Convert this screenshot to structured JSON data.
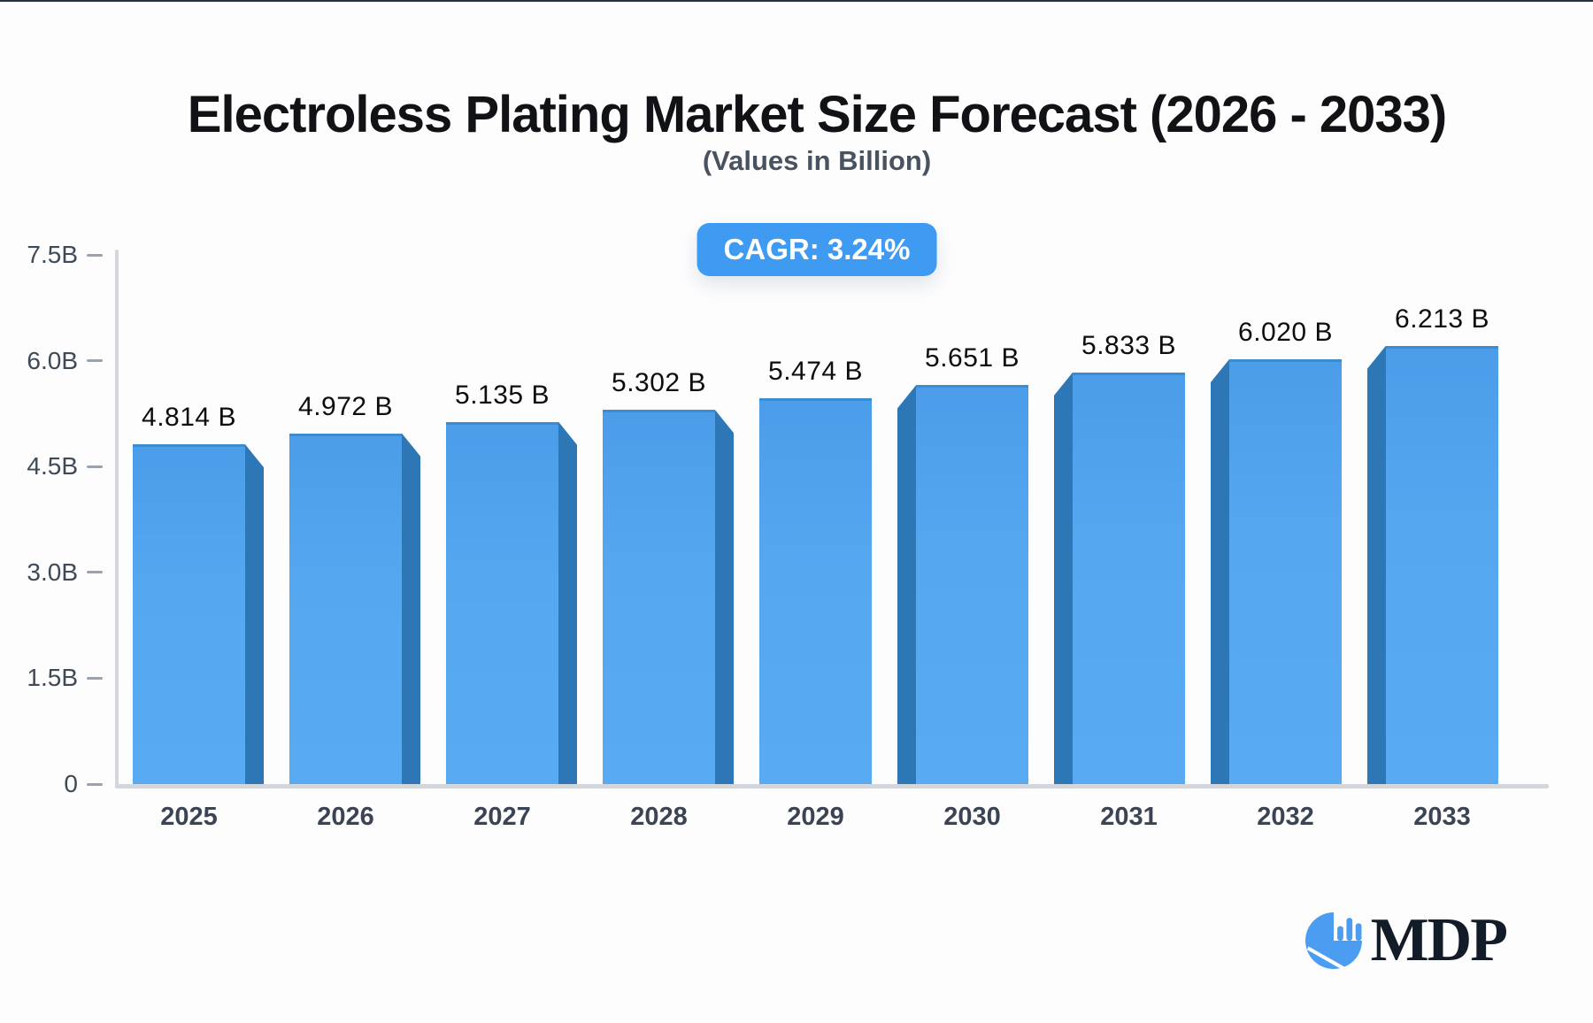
{
  "header": {
    "title": "Electroless Plating Market Size Forecast (2026 - 2033)",
    "subtitle": "(Values in Billion)"
  },
  "badge": {
    "label": "CAGR: 3.24%",
    "background": "#3f9bf2"
  },
  "chart_data": {
    "type": "bar",
    "title": "Electroless Plating Market Size Forecast (2026 - 2033)",
    "subtitle": "(Values in Billion)",
    "unit": "Billion",
    "cagr": "3.24%",
    "categories": [
      "2025",
      "2026",
      "2027",
      "2028",
      "2029",
      "2030",
      "2031",
      "2032",
      "2033"
    ],
    "values": [
      4.814,
      4.972,
      5.135,
      5.302,
      5.474,
      5.651,
      5.833,
      6.02,
      6.213
    ],
    "value_labels": [
      "4.814 B",
      "4.972 B",
      "5.135 B",
      "5.302 B",
      "5.474 B",
      "5.651 B",
      "5.833 B",
      "6.020 B",
      "6.213 B"
    ],
    "xlabel": "",
    "ylabel": "",
    "ylim": [
      0,
      7.5
    ],
    "yticks": [
      0,
      1.5,
      3.0,
      4.5,
      6.0,
      7.5
    ],
    "ytick_labels": [
      "0",
      "1.5B",
      "3.0B",
      "4.5B",
      "6.0B",
      "7.5B"
    ],
    "grid": false,
    "legend": false,
    "bar_color": "#55a8f0",
    "bar_side_color": "#2e77b7",
    "axis_color": "#d3d7db"
  },
  "logo": {
    "text": "MDP",
    "icon": "pie-bar-chart-icon",
    "color": "#4a9df0"
  }
}
